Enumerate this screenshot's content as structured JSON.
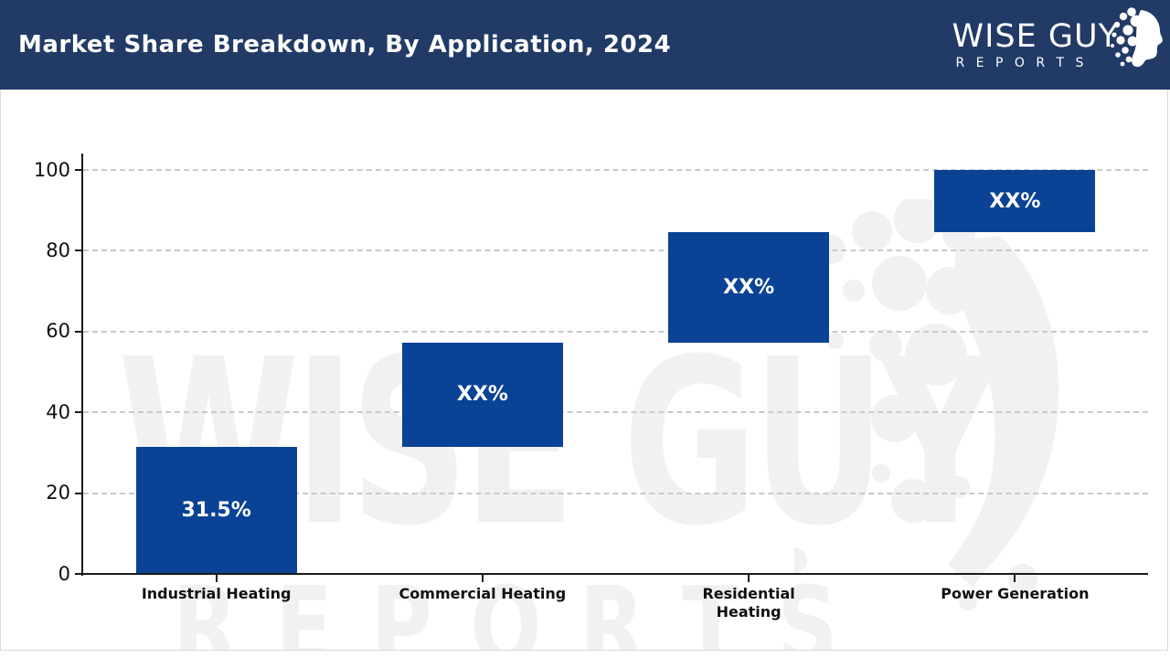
{
  "header": {
    "title": "Market Share Breakdown, By Application, 2024",
    "logo": {
      "line1": "WISE GUY",
      "line2": "R E P O R T S"
    }
  },
  "watermark": {
    "line1": "WISE GUY",
    "line2": "R E P O R T S"
  },
  "colors": {
    "header_bg": "#213a66",
    "bar": "#0a4296",
    "grid": "#c9c9c9",
    "axis": "#1a1a1a",
    "value_label": "#ffffff",
    "watermark": "#f1f1f4"
  },
  "chart_data": {
    "type": "bar",
    "subtype": "waterfall",
    "title": "Market Share Breakdown, By Application, 2024",
    "xlabel": "",
    "ylabel": "",
    "ylim": [
      0,
      100
    ],
    "yticks": [
      0,
      20,
      40,
      60,
      80,
      100
    ],
    "grid": "horizontal-dashed",
    "legend": "none",
    "categories": [
      "Industrial Heating",
      "Commercial Heating",
      "Residential\nHeating",
      "Power Generation"
    ],
    "segments": [
      {
        "category": "Industrial Heating",
        "start": 0,
        "end": 31.5,
        "label": "31.5%"
      },
      {
        "category": "Commercial Heating",
        "start": 31.5,
        "end": 57.3,
        "label": "XX%"
      },
      {
        "category": "Residential\nHeating",
        "start": 57.3,
        "end": 84.6,
        "label": "XX%"
      },
      {
        "category": "Power Generation",
        "start": 84.6,
        "end": 100,
        "label": "XX%"
      }
    ]
  }
}
